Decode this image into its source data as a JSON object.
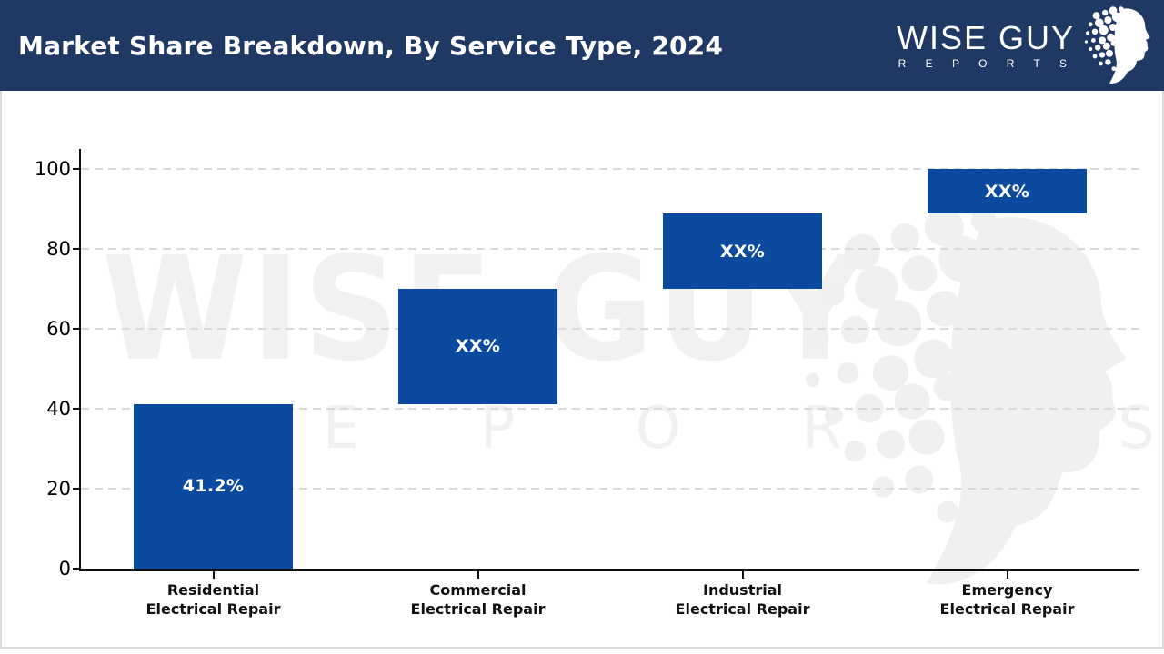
{
  "header": {
    "title": "Market Share Breakdown, By Service Type, 2024",
    "logo": {
      "wordmark": "WISE GUY",
      "subtext": "R E P O R T S"
    }
  },
  "watermark": {
    "wordmark": "WISE GUY",
    "subtext": "R E P O R T S"
  },
  "chart_data": {
    "type": "bar",
    "subtype": "waterfall",
    "title": "Market Share Breakdown, By Service Type, 2024",
    "unit": "%",
    "categories": [
      {
        "line1": "Residential",
        "line2": "Electrical Repair"
      },
      {
        "line1": "Commercial",
        "line2": "Electrical Repair"
      },
      {
        "line1": "Industrial",
        "line2": "Electrical Repair"
      },
      {
        "line1": "Emergency",
        "line2": "Electrical Repair"
      }
    ],
    "series": [
      {
        "name": "Market share by service type",
        "segments": [
          {
            "category": "Residential Electrical Repair",
            "start": 0,
            "end": 41.2,
            "label": "41.2%"
          },
          {
            "category": "Commercial Electrical Repair",
            "start": 41.2,
            "end": 70.0,
            "label": "XX%"
          },
          {
            "category": "Industrial Electrical Repair",
            "start": 70.0,
            "end": 88.8,
            "label": "XX%"
          },
          {
            "category": "Emergency Electrical Repair",
            "start": 88.8,
            "end": 100.0,
            "label": "XX%"
          }
        ]
      }
    ],
    "ylim": [
      0,
      100
    ],
    "yticks": [
      0,
      20,
      40,
      60,
      80,
      100
    ],
    "grid": {
      "axis": "y",
      "style": "dashed",
      "color": "#d9d9d9"
    },
    "legend": "none",
    "colors": {
      "bar": "#0b4a9e",
      "bar_label": "#ffffff",
      "axis": "#111111",
      "tick_label": "#000000",
      "header_bg": "#1f3864",
      "watermark": "#f1f1f1"
    }
  }
}
